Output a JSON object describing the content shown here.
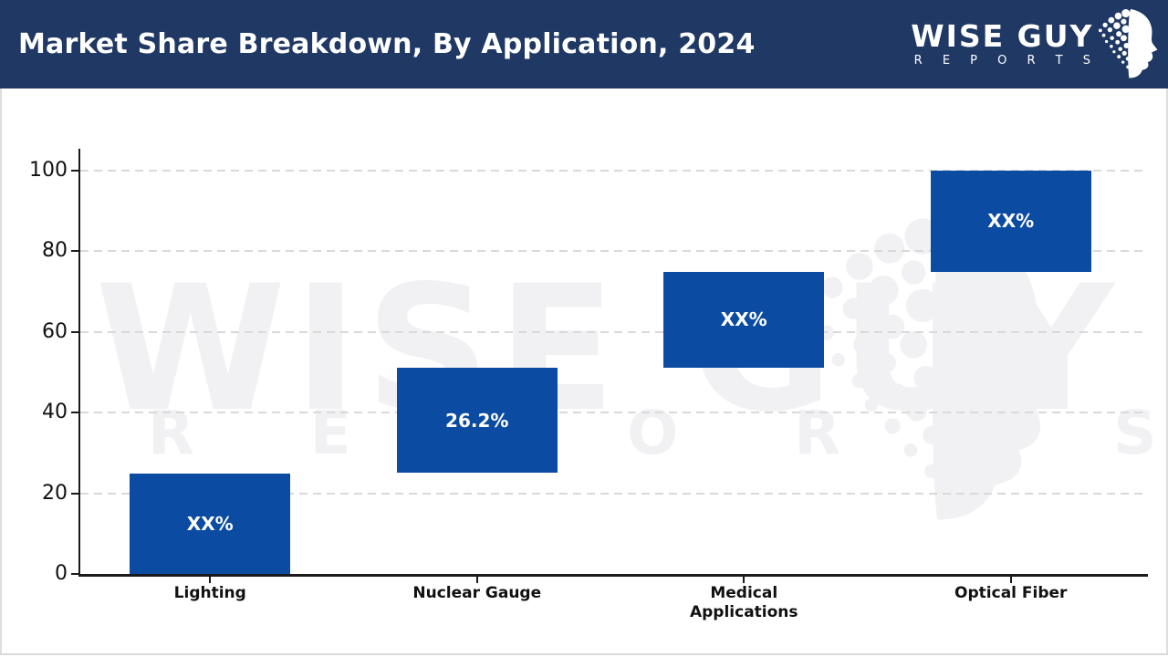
{
  "header": {
    "title": "Market Share Breakdown, By Application, 2024",
    "logo": {
      "name": "WISE GUY",
      "sub": "R E P O R T S"
    }
  },
  "watermark": {
    "big": "WISE GUY",
    "sub": "R E P O R T S"
  },
  "chart_data": {
    "type": "bar",
    "variant": "floating-segment-waterfall",
    "title": "Market Share Breakdown, By Application, 2024",
    "categories": [
      "Lighting",
      "Nuclear Gauge",
      "Medical\nApplications",
      "Optical Fiber"
    ],
    "segments": [
      {
        "category": "Lighting",
        "start": 0,
        "end": 25,
        "value_pct": 25,
        "label": "XX%"
      },
      {
        "category": "Nuclear Gauge",
        "start": 25,
        "end": 51.2,
        "value_pct": 26.2,
        "label": "26.2%"
      },
      {
        "category": "Medical\nApplications",
        "start": 51.2,
        "end": 75,
        "value_pct": 23.8,
        "label": "XX%"
      },
      {
        "category": "Optical Fiber",
        "start": 75,
        "end": 100,
        "value_pct": 25,
        "label": "XX%"
      }
    ],
    "xlabel": "",
    "ylabel": "",
    "yticks": [
      0,
      20,
      40,
      60,
      80,
      100
    ],
    "ylim": [
      0,
      105
    ],
    "grid": "horizontal-dashed",
    "legend": "none",
    "colors": {
      "bar": "#0b4ba1",
      "header_bg": "#1f3864",
      "grid": "#d9d9d9",
      "axis": "#1a1a1a",
      "bar_label": "#ffffff",
      "watermark": "#f1f1f4"
    }
  }
}
